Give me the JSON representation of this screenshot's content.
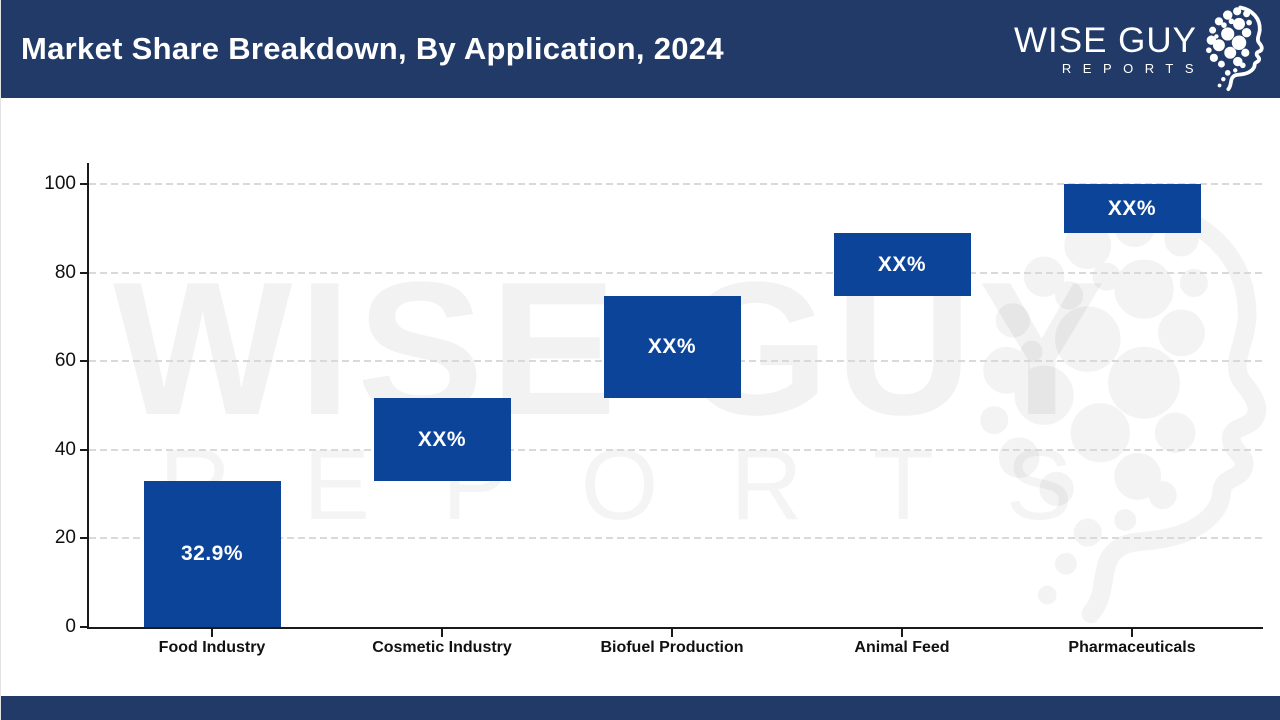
{
  "header": {
    "title": "Market Share Breakdown, By Application, 2024",
    "logo": {
      "wordmark": "WISE GUY",
      "subtext": "REPORTS"
    }
  },
  "watermark": {
    "line1": "WISE GUY",
    "line2": "REPORTS"
  },
  "chart_data": {
    "type": "bar",
    "variant": "floating-segment-waterfall",
    "title": "Market Share Breakdown, By Application, 2024",
    "categories": [
      "Food Industry",
      "Cosmetic Industry",
      "Biofuel Production",
      "Animal Feed",
      "Pharmaceuticals"
    ],
    "series": [
      {
        "name": "Market share (%)",
        "segments": [
          {
            "category": "Food Industry",
            "start": 0,
            "end": 32.9,
            "label": "32.9%"
          },
          {
            "category": "Cosmetic Industry",
            "start": 32.9,
            "end": 51.6,
            "label": "XX%"
          },
          {
            "category": "Biofuel Production",
            "start": 51.6,
            "end": 74.7,
            "label": "XX%"
          },
          {
            "category": "Animal Feed",
            "start": 74.7,
            "end": 88.9,
            "label": "XX%"
          },
          {
            "category": "Pharmaceuticals",
            "start": 88.9,
            "end": 100,
            "label": "XX%"
          }
        ]
      }
    ],
    "xlabel": "",
    "ylabel": "",
    "y_ticks": [
      0,
      20,
      40,
      60,
      80,
      100
    ],
    "ylim": [
      0,
      105
    ],
    "grid": "horizontal-dashed",
    "legend_position": "none",
    "bar_color": "#0c4499"
  },
  "colors": {
    "band_navy": "#213a68",
    "bar_blue": "#0c4499",
    "grid_gray": "#d9d9d9",
    "axis_black": "#1a1a1a",
    "label_on_bar": "#ffffff"
  }
}
